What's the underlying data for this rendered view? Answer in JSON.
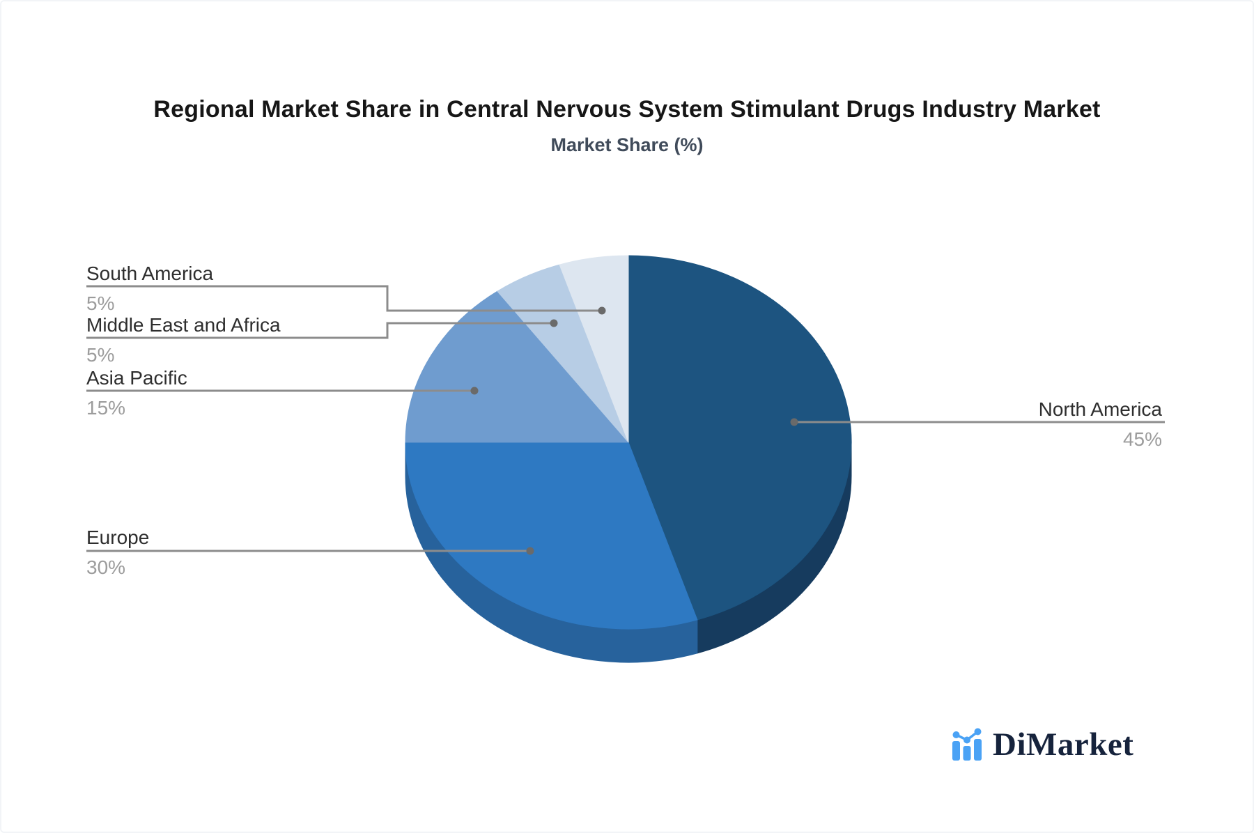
{
  "chart": {
    "title": "Regional Market Share in Central Nervous System Stimulant Drugs Industry Market",
    "subtitle": "Market Share (%)"
  },
  "chart_data": {
    "type": "pie",
    "style": "3d-pie",
    "title": "Regional Market Share in Central Nervous System Stimulant Drugs Industry Market",
    "subtitle": "Market Share (%)",
    "unit": "%",
    "start_angle_deg": 0,
    "direction": "clockwise",
    "legend_position": "callout-labels",
    "slices": [
      {
        "label": "North America",
        "value": 45,
        "pct_label": "45%",
        "color": "#1d5480",
        "rim_color": "#163b5e"
      },
      {
        "label": "Europe",
        "value": 30,
        "pct_label": "30%",
        "color": "#2e79c2",
        "rim_color": "#27629c"
      },
      {
        "label": "Asia Pacific",
        "value": 15,
        "pct_label": "15%",
        "color": "#6f9ccf",
        "rim_color": "#5c86b5"
      },
      {
        "label": "Middle East and Africa",
        "value": 5,
        "pct_label": "5%",
        "color": "#b7cde5",
        "rim_color": "#9cb3cd"
      },
      {
        "label": "South America",
        "value": 5,
        "pct_label": "5%",
        "color": "#dde6f0",
        "rim_color": "#c3cdda"
      }
    ]
  },
  "colors": {
    "connector_line": "#8c8c8c",
    "connector_dot": "#6a6a6a",
    "label_text": "#2e2e2e",
    "pct_text": "#9c9c9c",
    "logo_text": "#16233c",
    "logo_accent": "#4aa2f5"
  },
  "logo": {
    "text": "DiMarket",
    "icon": "bar-trend-chart-icon"
  }
}
